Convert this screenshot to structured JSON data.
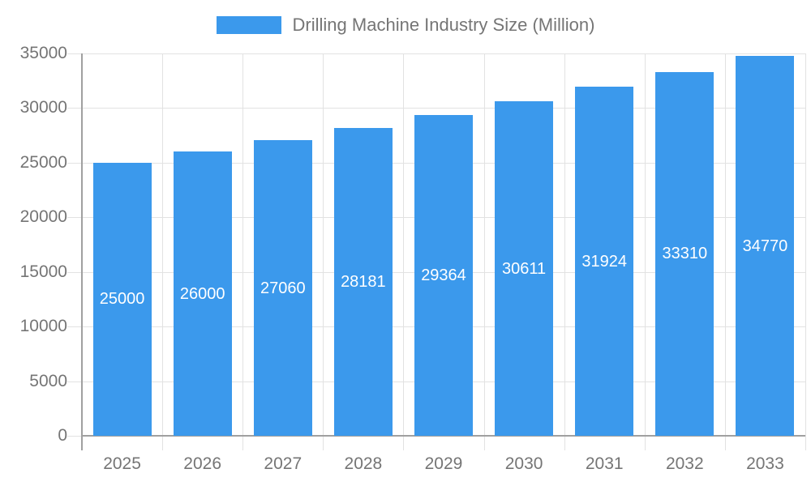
{
  "legend": {
    "label": "Drilling Machine Industry Size (Million)"
  },
  "chart_data": {
    "type": "bar",
    "title": "Drilling Machine Industry Size (Million)",
    "series_name": "Drilling Machine Industry Size (Million)",
    "categories": [
      "2025",
      "2026",
      "2027",
      "2028",
      "2029",
      "2030",
      "2031",
      "2032",
      "2033"
    ],
    "values": [
      25000,
      26000,
      27060,
      28181,
      29364,
      30611,
      31924,
      33310,
      34770
    ],
    "value_labels": [
      "25000",
      "26000",
      "27060",
      "28181",
      "29364",
      "30611",
      "31924",
      "33310",
      "34770"
    ],
    "xlabel": "",
    "ylabel": "",
    "ylim": [
      0,
      35000
    ],
    "yticks": [
      0,
      5000,
      10000,
      15000,
      20000,
      25000,
      30000,
      35000
    ],
    "ytick_labels": [
      "0",
      "5000",
      "10000",
      "15000",
      "20000",
      "25000",
      "30000",
      "35000"
    ],
    "grid": true,
    "legend_position": "top",
    "colors": {
      "bar": "#3B99EC",
      "value_label": "#FFFFFF",
      "text": "#757575",
      "grid": "#E2E2E2",
      "axis": "#A0A0A0"
    }
  }
}
